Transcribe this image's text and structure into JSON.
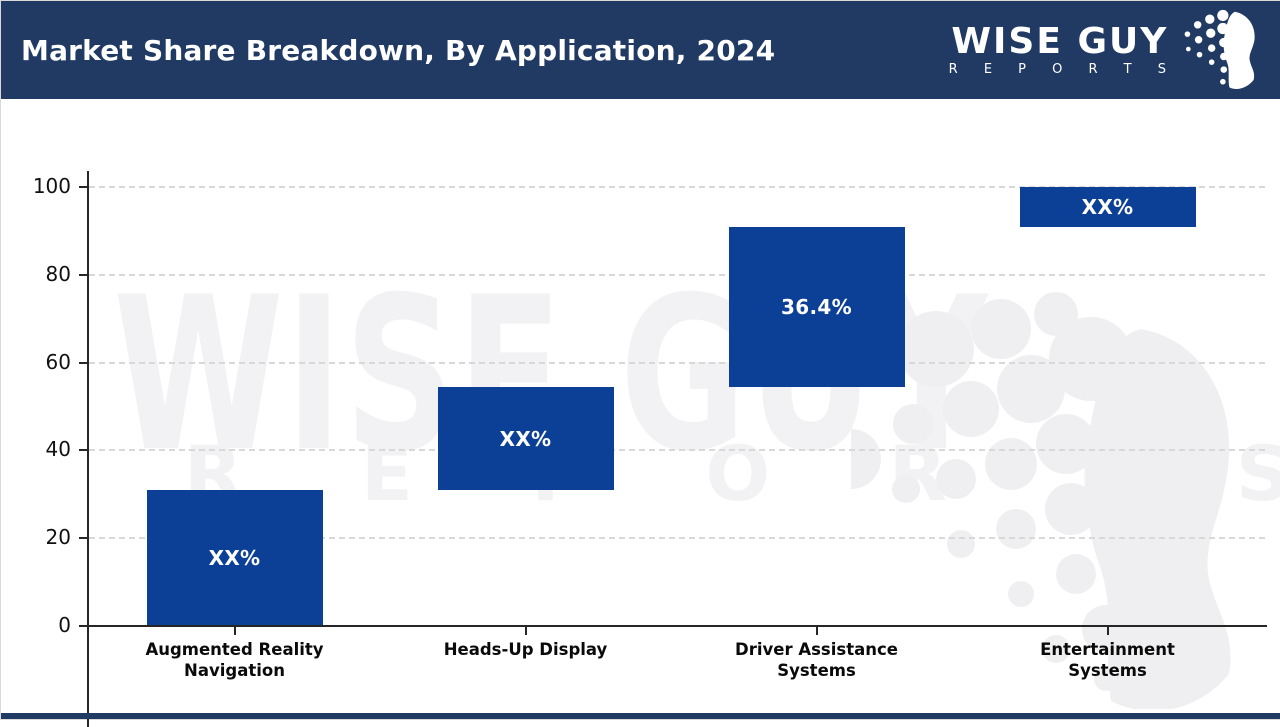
{
  "header": {
    "title": "Market Share Breakdown, By Application, 2024",
    "logo": {
      "line1": "WISE GUY",
      "line2": "R E P O R T S"
    }
  },
  "watermark": {
    "line1": "WISE GUY",
    "line2": "R E P O R T S"
  },
  "chart_data": {
    "type": "bar",
    "variant": "floating-segment-waterfall",
    "title": "Market Share Breakdown, By Application, 2024",
    "categories": [
      "Augmented Reality Navigation",
      "Heads-Up Display",
      "Driver Assistance Systems",
      "Entertainment Systems"
    ],
    "category_label_lines": [
      [
        "Augmented Reality",
        "Navigation"
      ],
      [
        "Heads-Up Display"
      ],
      [
        "Driver Assistance",
        "Systems"
      ],
      [
        "Entertainment",
        "Systems"
      ]
    ],
    "segments": [
      {
        "category": "Augmented Reality Navigation",
        "start": 0,
        "end": 31,
        "label": "XX%"
      },
      {
        "category": "Heads-Up Display",
        "start": 31,
        "end": 54.4,
        "label": "XX%"
      },
      {
        "category": "Driver Assistance Systems",
        "start": 54.4,
        "end": 90.8,
        "label": "36.4%"
      },
      {
        "category": "Entertainment Systems",
        "start": 90.8,
        "end": 100,
        "label": "XX%"
      }
    ],
    "yticks": [
      0,
      20,
      40,
      60,
      80,
      100
    ],
    "ylim": [
      0,
      104
    ],
    "xlabel": "",
    "ylabel": "",
    "legend": "none",
    "grid": {
      "horizontal": true,
      "style": "dashed",
      "color": "#d8d8d8"
    }
  },
  "colors": {
    "header_bg": "#203a64",
    "footer_bg": "#203a64",
    "bar_fill": "#0c3f96",
    "bar_label": "#ffffff",
    "axis": "#262626",
    "watermark": "#f2f2f5",
    "page_bg": "#ffffff"
  }
}
